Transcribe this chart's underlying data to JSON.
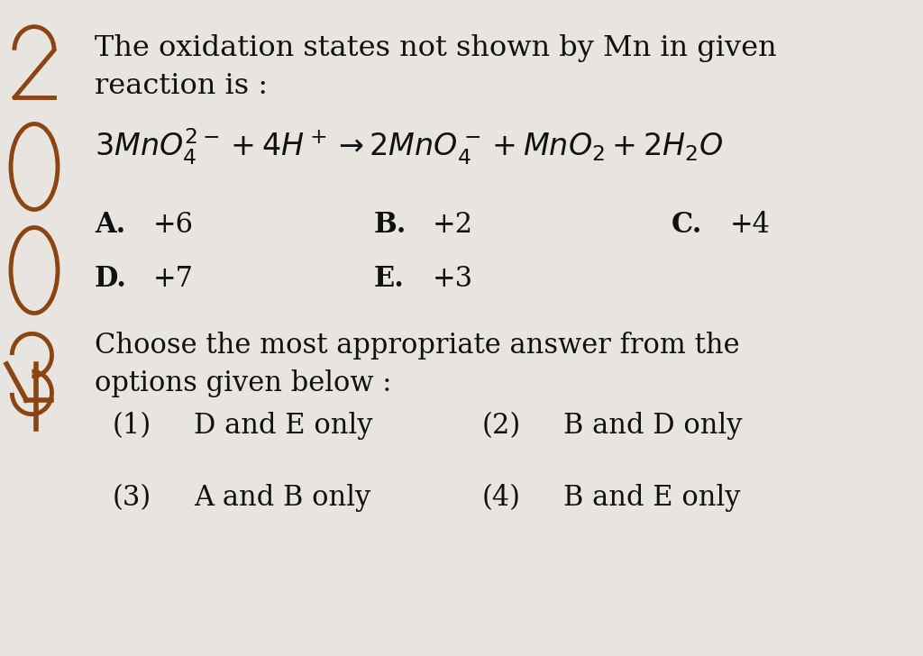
{
  "bg_color": "#e8e4df",
  "text_color": "#111111",
  "side_decoration_color": "#8B4513",
  "title_line1": "The oxidation states not shown by Mn in given",
  "title_line2": "reaction is :",
  "choose_line1": "Choose the most appropriate answer from the",
  "choose_line2": "options given below :",
  "option_A": "A.",
  "option_A_val": "+6",
  "option_B": "B.",
  "option_B_val": "+2",
  "option_C": "C.",
  "option_C_val": "+4",
  "option_D": "D.",
  "option_D_val": "+7",
  "option_E": "E.",
  "option_E_val": "+3",
  "ans1_num": "(1)",
  "ans1_txt": "D and E only",
  "ans2_num": "(2)",
  "ans2_txt": "B and D only",
  "ans3_num": "(3)",
  "ans3_txt": "A and B only",
  "ans4_num": "(4)",
  "ans4_txt": "B and E only",
  "title_fontsize": 23,
  "equation_fontsize": 24,
  "option_fontsize": 22,
  "choose_fontsize": 22,
  "answer_fontsize": 22
}
